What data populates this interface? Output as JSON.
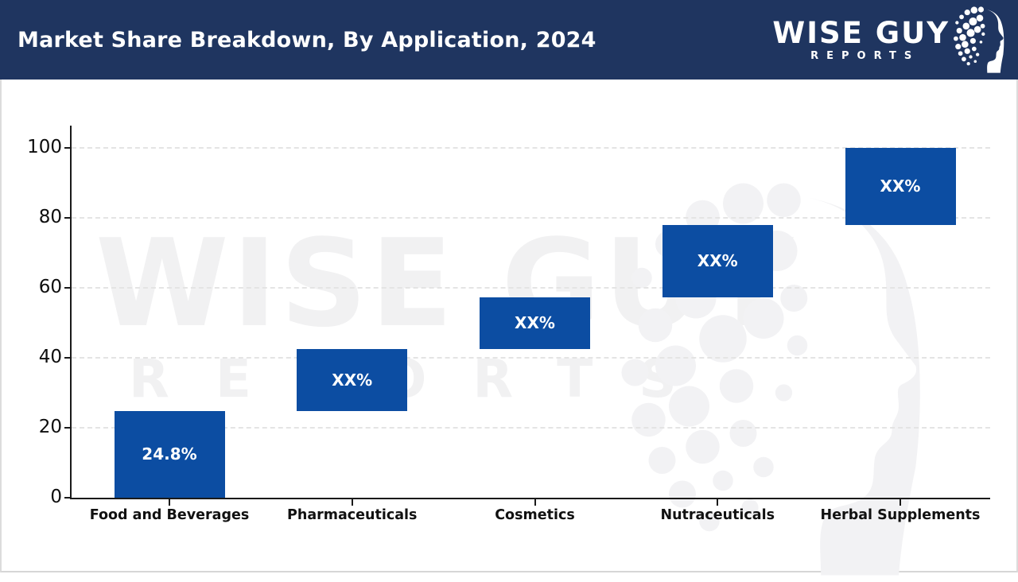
{
  "header": {
    "title": "Market Share Breakdown, By Application, 2024",
    "logo": {
      "line1": "WISE GUY",
      "line2": "REPORTS"
    }
  },
  "watermark": {
    "line1": "WISE GUY",
    "line2": "REPORTS"
  },
  "colors": {
    "header_bg": "#1F3560",
    "bar": "#0C4DA2",
    "grid": "#e4e4e4",
    "axis": "#1a1a1a",
    "watermark": "#f1f1f2",
    "bar_label": "#ffffff",
    "title_text": "#ffffff"
  },
  "chart_data": {
    "type": "bar",
    "subtype": "waterfall",
    "title": "Market Share Breakdown, By Application, 2024",
    "categories": [
      "Food and Beverages",
      "Pharmaceuticals",
      "Cosmetics",
      "Nutraceuticals",
      "Herbal Supplements"
    ],
    "segments": [
      {
        "category": "Food and Beverages",
        "start": 0,
        "end": 24.8,
        "label": "24.8%"
      },
      {
        "category": "Pharmaceuticals",
        "start": 24.8,
        "end": 42.5,
        "label": "XX%"
      },
      {
        "category": "Cosmetics",
        "start": 42.5,
        "end": 57.2,
        "label": "XX%"
      },
      {
        "category": "Nutraceuticals",
        "start": 57.2,
        "end": 77.9,
        "label": "XX%"
      },
      {
        "category": "Herbal Supplements",
        "start": 77.9,
        "end": 100,
        "label": "XX%"
      }
    ],
    "xlabel": "",
    "ylabel": "",
    "ylim": [
      0,
      100
    ],
    "yticks": [
      0,
      20,
      40,
      60,
      80,
      100
    ],
    "grid": "horizontal-dashed",
    "legend": "none"
  }
}
